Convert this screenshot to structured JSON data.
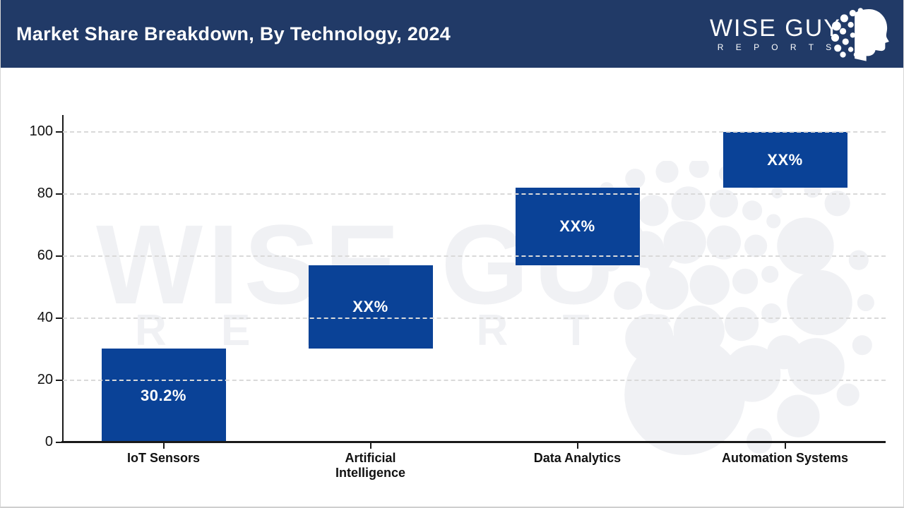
{
  "header": {
    "title": "Market Share Breakdown, By Technology, 2024",
    "logo": {
      "brand": "WISE GUY",
      "tagline": "R E P O R T S"
    }
  },
  "watermark": {
    "brand": "WISE GUY",
    "tagline": "R E P O R T S"
  },
  "colors": {
    "header_bg": "#213a67",
    "bar": "#0a4297",
    "bar_label": "#ffffff",
    "axis": "#1a1a1a",
    "gridline": "#d9d9d9",
    "watermark": "#f0f1f4"
  },
  "chart_data": {
    "type": "waterfall",
    "title": "Market Share Breakdown, By Technology, 2024",
    "categories": [
      "IoT Sensors",
      "Artificial Intelligence",
      "Data Analytics",
      "Automation Systems"
    ],
    "segments": [
      {
        "category": "IoT Sensors",
        "start": 0,
        "end": 30.2,
        "label": "30.2%"
      },
      {
        "category": "Artificial Intelligence",
        "start": 30.2,
        "end": 57,
        "label": "XX%"
      },
      {
        "category": "Data Analytics",
        "start": 57,
        "end": 82,
        "label": "XX%"
      },
      {
        "category": "Automation Systems",
        "start": 82,
        "end": 100,
        "label": "XX%"
      }
    ],
    "ylim": [
      0,
      100
    ],
    "yticks": [
      0,
      20,
      40,
      60,
      80,
      100
    ],
    "xlabel": "",
    "ylabel": "",
    "grid": "horizontal-dashed",
    "legend": "none",
    "bar_color": "#0a4297",
    "bar_label_color": "#ffffff"
  }
}
